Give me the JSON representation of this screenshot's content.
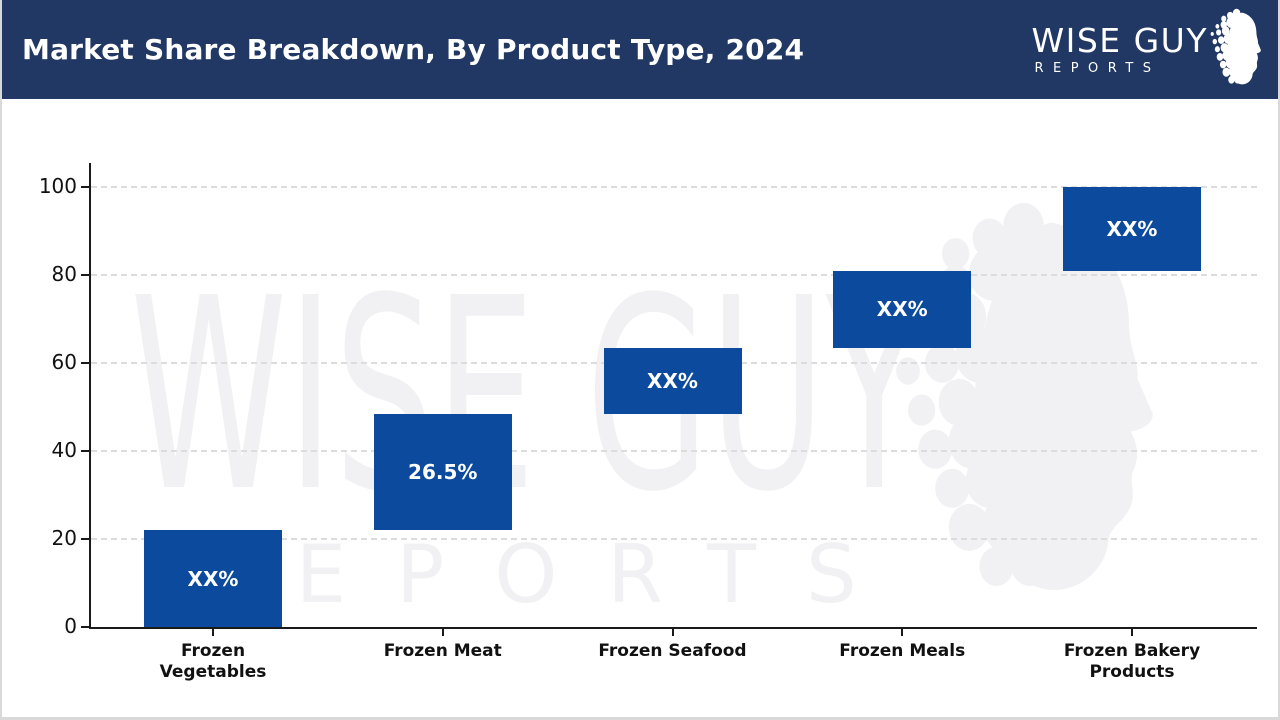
{
  "header": {
    "title": "Market Share Breakdown, By Product Type, 2024",
    "logo": {
      "name": "WISE GUY",
      "tagline": "REPORTS"
    }
  },
  "watermark": {
    "text": "WISE GUY",
    "subtext": "REPORTS"
  },
  "chart_data": {
    "type": "bar",
    "subtype": "waterfall",
    "title": "Market Share Breakdown, By Product Type, 2024",
    "categories": [
      "Frozen Vegetables",
      "Frozen Meat",
      "Frozen Seafood",
      "Frozen Meals",
      "Frozen Bakery Products"
    ],
    "bars": [
      {
        "category": "Frozen Vegetables",
        "start": 0,
        "end": 22,
        "label": "XX%"
      },
      {
        "category": "Frozen Meat",
        "start": 22,
        "end": 48.5,
        "label": "26.5%"
      },
      {
        "category": "Frozen Seafood",
        "start": 48.5,
        "end": 63.5,
        "label": "XX%"
      },
      {
        "category": "Frozen Meals",
        "start": 63.5,
        "end": 81,
        "label": "XX%"
      },
      {
        "category": "Frozen Bakery Products",
        "start": 81,
        "end": 100,
        "label": "XX%"
      }
    ],
    "xlabel": "",
    "ylabel": "",
    "ylim": [
      0,
      100
    ],
    "yticks": [
      0,
      20,
      40,
      60,
      80,
      100
    ],
    "grid": "horizontal-dashed",
    "legend": "none"
  },
  "colors": {
    "header_bg": "#213864",
    "bar": "#0c4a9e",
    "bar_label": "#ffffff",
    "grid": "#dcdcdc",
    "axis": "#1a1a1a",
    "text": "#111111",
    "watermark": "#f1f1f3",
    "page_bg": "#ffffff"
  }
}
